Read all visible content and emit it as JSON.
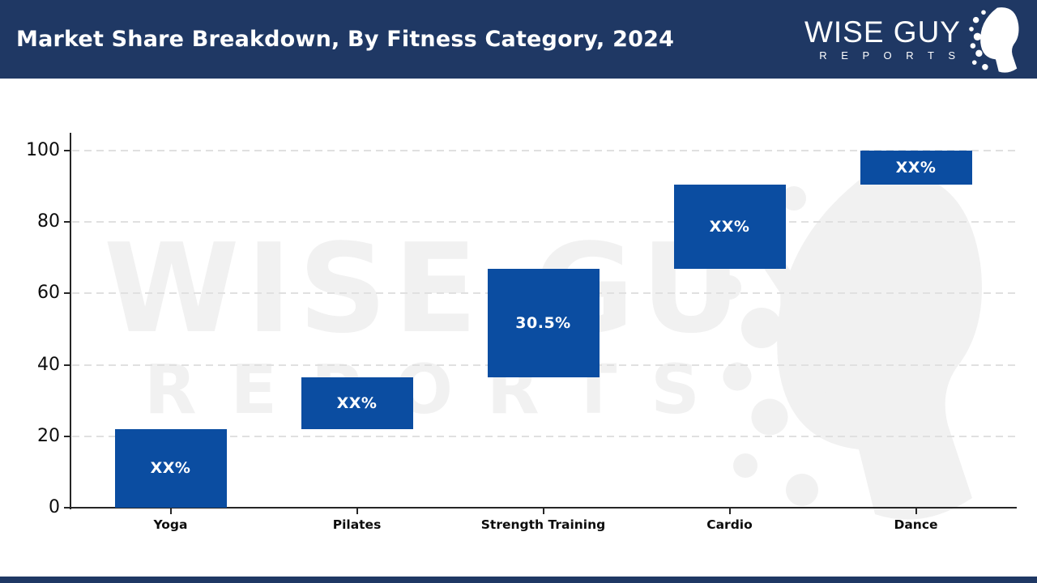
{
  "header": {
    "title": "Market Share Breakdown, By Fitness Category, 2024",
    "logo": {
      "line1": "WISE GUY",
      "line2": "R E P O R T S"
    }
  },
  "watermark": {
    "line1": "WISE GUY",
    "line2": "REPORTS"
  },
  "colors": {
    "header_bg": "#1f3864",
    "footer_bg": "#1f3864",
    "bar_fill": "#0b4da1",
    "bar_label_text": "#ffffff",
    "axis": "#262626",
    "gridline": "#e0e0e0",
    "watermark": "#f1f1f1",
    "title_text": "#ffffff"
  },
  "chart_data": {
    "type": "bar",
    "subtype": "floating-waterfall",
    "title": "Market Share Breakdown, By Fitness Category, 2024",
    "xlabel": "",
    "ylabel": "",
    "categories": [
      "Yoga",
      "Pilates",
      "Strength Training",
      "Cardio",
      "Dance"
    ],
    "segments": [
      {
        "category": "Yoga",
        "start": 0,
        "end": 22,
        "label": "XX%"
      },
      {
        "category": "Pilates",
        "start": 22,
        "end": 36.5,
        "label": "XX%"
      },
      {
        "category": "Strength Training",
        "start": 36.5,
        "end": 67,
        "label": "30.5%"
      },
      {
        "category": "Cardio",
        "start": 67,
        "end": 90.5,
        "label": "XX%"
      },
      {
        "category": "Dance",
        "start": 90.5,
        "end": 100,
        "label": "XX%"
      }
    ],
    "known_values": {
      "Strength Training": 30.5
    },
    "yticks": [
      0,
      20,
      40,
      60,
      80,
      100
    ],
    "ylim": [
      0,
      105
    ],
    "grid": "horizontal-dashed",
    "legend": "none"
  }
}
